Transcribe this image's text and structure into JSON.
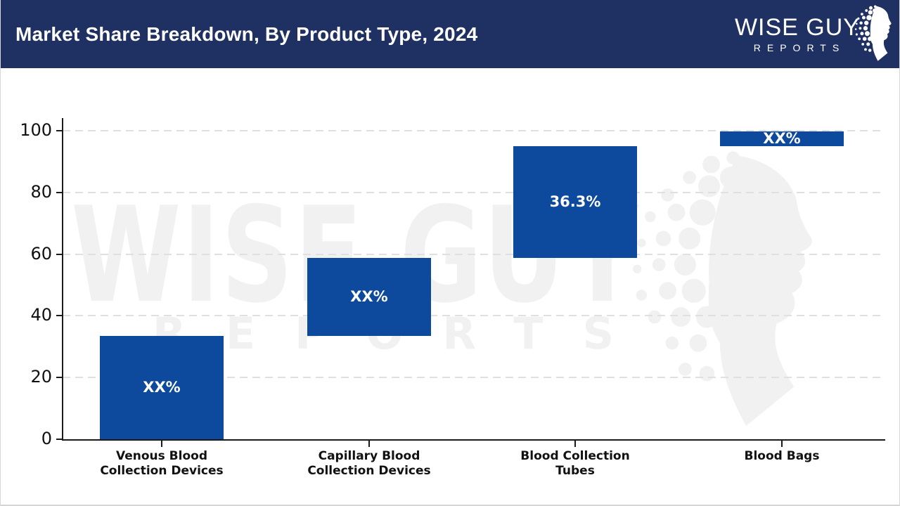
{
  "header": {
    "title": "Market Share Breakdown, By Product Type, 2024",
    "logo": {
      "line1": "WISE GUY",
      "line2": "REPORTS"
    }
  },
  "watermark": {
    "line1": "WISE GUY",
    "line2": "REPORTS"
  },
  "chart_data": {
    "type": "bar",
    "variant": "floating-waterfall",
    "title": "Market Share Breakdown, By Product Type, 2024",
    "categories": [
      "Venous Blood Collection Devices",
      "Capillary Blood Collection Devices",
      "Blood Collection Tubes",
      "Blood Bags"
    ],
    "bars": [
      {
        "category": "Venous Blood Collection Devices",
        "label_lines": [
          "Venous Blood",
          "Collection Devices"
        ],
        "start": 0,
        "end": 33.5,
        "value_label": "XX%"
      },
      {
        "category": "Capillary Blood Collection Devices",
        "label_lines": [
          "Capillary Blood",
          "Collection Devices"
        ],
        "start": 33.5,
        "end": 58.8,
        "value_label": "XX%"
      },
      {
        "category": "Blood Collection Tubes",
        "label_lines": [
          "Blood Collection",
          "Tubes"
        ],
        "start": 58.8,
        "end": 95.1,
        "value_label": "36.3%"
      },
      {
        "category": "Blood Bags",
        "label_lines": [
          "Blood Bags"
        ],
        "start": 95.0,
        "end": 99.8,
        "value_label": "XX%"
      }
    ],
    "yticks": [
      0,
      20,
      40,
      60,
      80,
      100
    ],
    "ylim": [
      0,
      105
    ],
    "xlabel": "",
    "ylabel": "",
    "grid": "horizontal-dashed",
    "legend": "none",
    "bar_color": "#0d4a9d",
    "value_label_color": "#ffffff",
    "axis_color": "#1a1a1a",
    "grid_color": "#e0e0e0"
  },
  "colors": {
    "header_bg": "#1e3162",
    "bar": "#0d4a9d",
    "watermark": "#f1f1f1"
  }
}
